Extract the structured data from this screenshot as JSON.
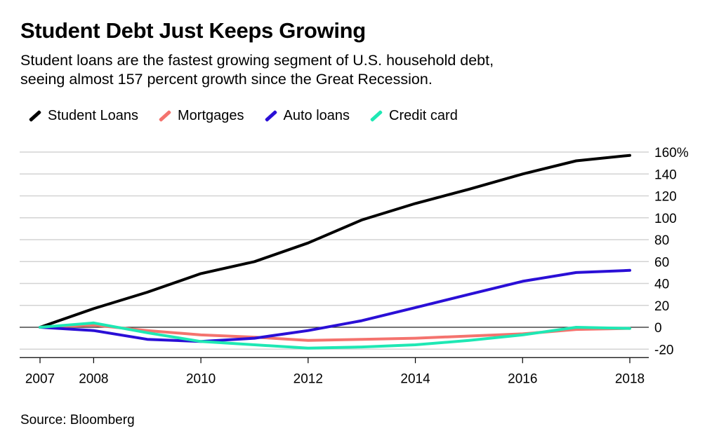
{
  "header": {
    "title": "Student Debt Just Keeps Growing",
    "subtitle_line1": "Student loans are the fastest growing segment of U.S. household debt,",
    "subtitle_line2": "seeing almost 157 percent growth since the Great Recession."
  },
  "footer": {
    "source": "Source: Bloomberg"
  },
  "chart_data": {
    "type": "line",
    "title": "Student Debt Just Keeps Growing",
    "xlabel": "",
    "ylabel": "",
    "x": [
      2007,
      2008,
      2009,
      2010,
      2011,
      2012,
      2013,
      2014,
      2015,
      2016,
      2017,
      2018
    ],
    "x_ticks": [
      2007,
      2008,
      2010,
      2012,
      2014,
      2016,
      2018
    ],
    "x_tick_labels": [
      "2007",
      "2008",
      "2010",
      "2012",
      "2014",
      "2016",
      "2018"
    ],
    "xlim": [
      2007,
      2018
    ],
    "ylim": [
      -20,
      160
    ],
    "y_ticks": [
      -20,
      0,
      20,
      40,
      60,
      80,
      100,
      120,
      140,
      160
    ],
    "y_tick_labels": [
      "-20",
      "0",
      "20",
      "40",
      "60",
      "80",
      "100",
      "120",
      "140",
      "160%"
    ],
    "grid": true,
    "legend_position": "top-left",
    "series": [
      {
        "name": "Student Loans",
        "color": "#000000",
        "values": [
          0,
          17,
          32,
          49,
          60,
          77,
          98,
          113,
          126,
          140,
          152,
          157
        ]
      },
      {
        "name": "Mortgages",
        "color": "#f4736e",
        "values": [
          0,
          2,
          -3,
          -7,
          -9,
          -12,
          -11,
          -10,
          -8,
          -6,
          -2,
          -1
        ]
      },
      {
        "name": "Auto loans",
        "color": "#2a0fd6",
        "values": [
          0,
          -3,
          -11,
          -13,
          -10,
          -3,
          6,
          18,
          30,
          42,
          50,
          52
        ]
      },
      {
        "name": "Credit card",
        "color": "#1ee8b4",
        "values": [
          0,
          4,
          -5,
          -13,
          -16,
          -19,
          -18,
          -16,
          -12,
          -7,
          0,
          -1
        ]
      }
    ]
  }
}
